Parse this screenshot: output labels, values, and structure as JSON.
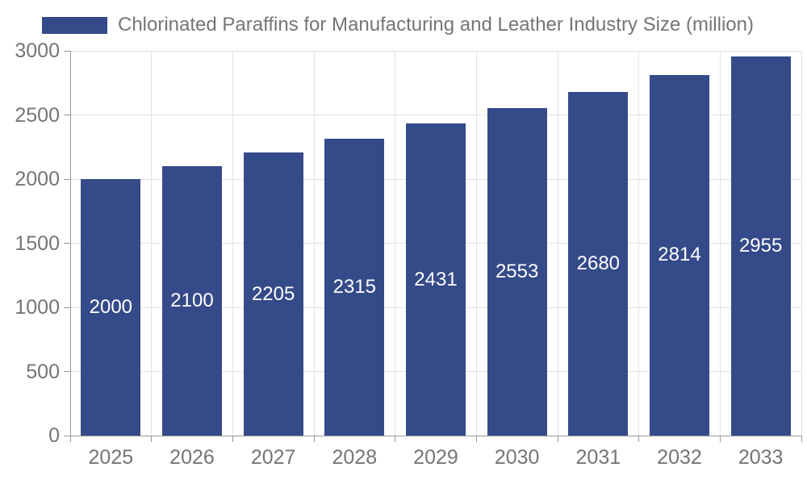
{
  "chart_data": {
    "type": "bar",
    "title": "Chlorinated Paraffins for Manufacturing and Leather Industry Size (million)",
    "categories": [
      "2025",
      "2026",
      "2027",
      "2028",
      "2029",
      "2030",
      "2031",
      "2032",
      "2033"
    ],
    "series": [
      {
        "name": "Chlorinated Paraffins for Manufacturing and Leather Industry Size (million)",
        "values": [
          2000,
          2100,
          2205,
          2315,
          2431,
          2553,
          2680,
          2814,
          2955
        ]
      }
    ],
    "values": [
      2000,
      2100,
      2205,
      2315,
      2431,
      2553,
      2680,
      2814,
      2955
    ],
    "value_labels": [
      2000,
      2100,
      2205,
      2315,
      2431,
      2553,
      2680,
      2814,
      2955
    ],
    "xlabel": "",
    "ylabel": "",
    "ylim": [
      0,
      3000
    ],
    "yticks": [
      0,
      500,
      1000,
      1500,
      2000,
      2500,
      3000
    ],
    "grid": true,
    "legend_position": "top-left",
    "value_label_position": "inside-center",
    "colors": {
      "bar": "#354a88",
      "grid": "#e2e2e2",
      "axis": "#999999",
      "tick_label": "#757575",
      "title": "#757575",
      "value_label": "#ffffff",
      "background": "#ffffff"
    }
  }
}
